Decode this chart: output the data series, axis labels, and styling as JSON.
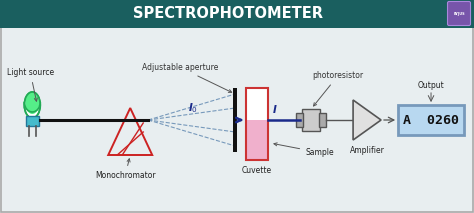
{
  "title": "SPECTROPHOTOMETER",
  "title_bg": "#1a5f5f",
  "title_color": "white",
  "bg_color": "#e8eef0",
  "border_color": "#aaaaaa",
  "labels": {
    "light_source": "Light source",
    "adjustable_aperture": "Adjustable aperture",
    "monochromator": "Monochromator",
    "cuvette": "Cuvette",
    "I0": "I$_0$",
    "I": "I",
    "sample": "Sample",
    "photoresistor": "photoresistor",
    "amplifier": "Amplifier",
    "output": "Output",
    "display": "A  0260"
  },
  "display_bg": "#b8d8f0",
  "display_border": "#7799bb",
  "display_text_color": "#111111",
  "beam_color": "#1a2a8a",
  "prism_color": "#cc2222",
  "cuvette_fill": "#f0b0cc",
  "cuvette_top": "#ffffff",
  "cuvette_border": "#cc3333",
  "bulb_color": "#55ee88",
  "bulb_border": "#22aa55",
  "bulb_base": "#44bbcc",
  "badge_color": "#7755aa"
}
